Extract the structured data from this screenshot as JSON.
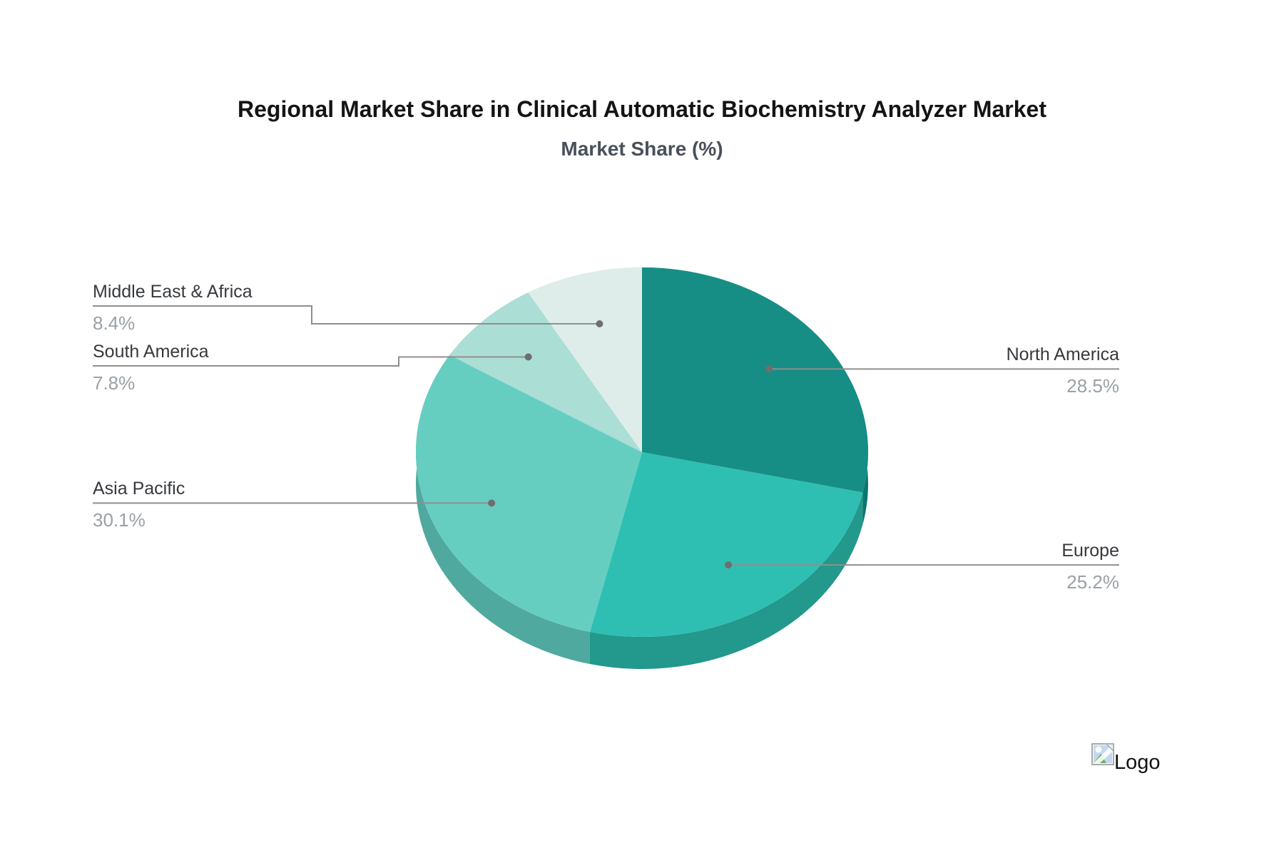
{
  "title": "Regional Market Share in Clinical Automatic Biochemistry Analyzer Market",
  "subtitle": "Market Share (%)",
  "logo": {
    "text": "Logo"
  },
  "chart_data": {
    "type": "pie",
    "style": "3d-pie",
    "title": "Regional Market Share in Clinical Automatic Biochemistry Analyzer Market",
    "subtitle": "Market Share (%)",
    "unit": "percent",
    "start_angle": "top (12 o'clock)",
    "direction": "clockwise",
    "legend": "none",
    "labels": [
      "North America",
      "Europe",
      "Asia Pacific",
      "South America",
      "Middle East & Africa"
    ],
    "values": [
      28.5,
      25.2,
      30.1,
      7.8,
      8.4
    ],
    "value_labels": [
      "28.5%",
      "25.2%",
      "30.1%",
      "7.8%",
      "8.4%"
    ],
    "colors": [
      "#178E85",
      "#2FBFB2",
      "#66CEC1",
      "#ABDED5",
      "#DFEDEA"
    ],
    "depth_colors": [
      "#0E756D",
      "#23988D",
      "#4FA99E",
      "#8CBEB4",
      "#BACFCA"
    ],
    "label_sides": [
      "right",
      "right",
      "left",
      "left",
      "left"
    ],
    "leader_line_color": "#8F8F8F",
    "leader_dot_color": "#6E6E6E",
    "label_name_color": "#36393D",
    "label_value_color": "#9AA0A5",
    "background": "#FFFFFF"
  }
}
